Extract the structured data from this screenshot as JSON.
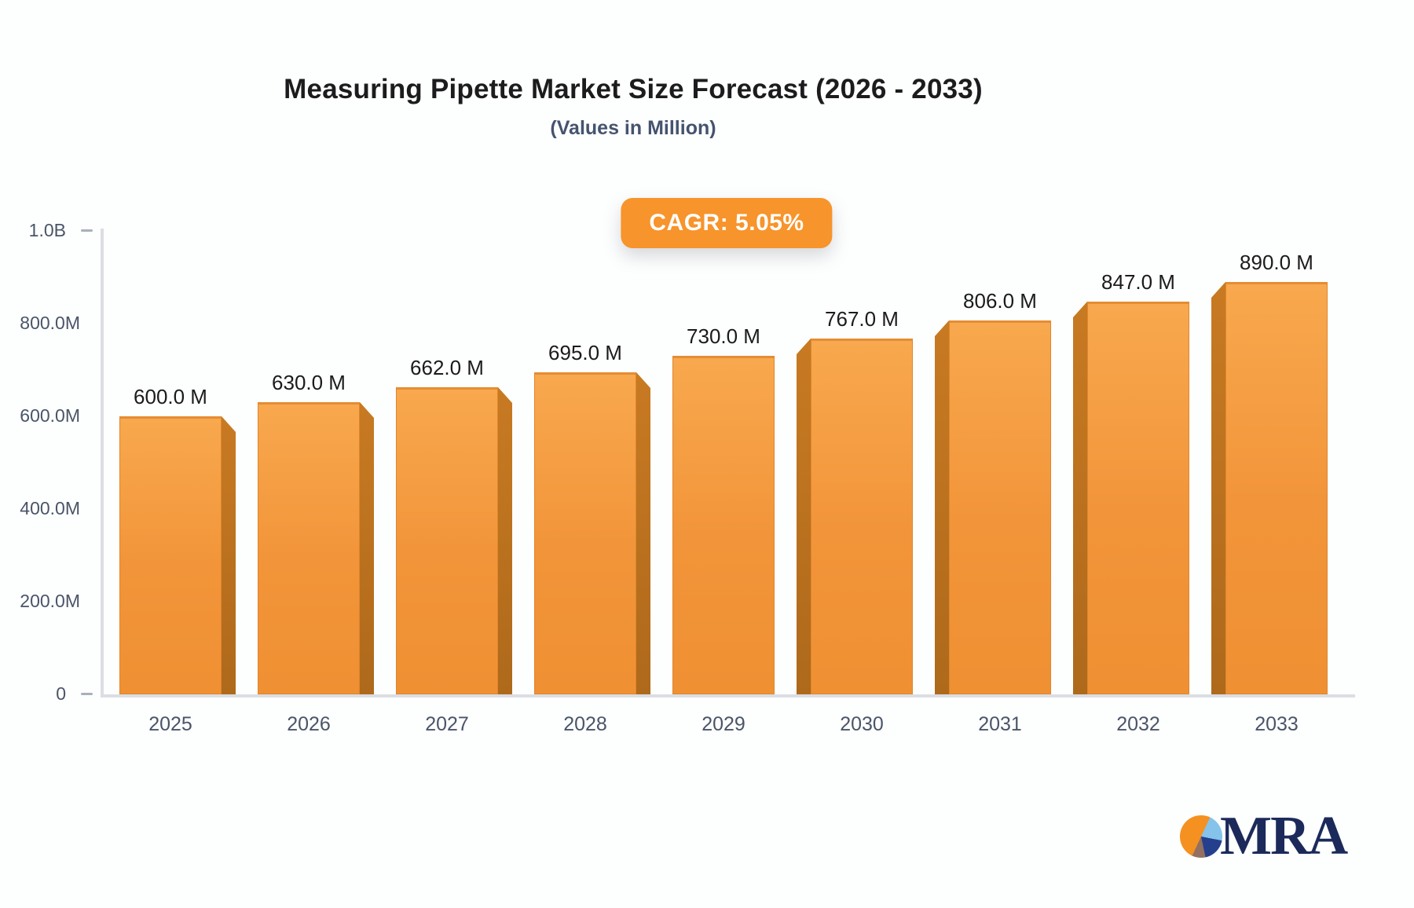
{
  "header": {
    "title": "Measuring Pipette Market Size Forecast (2026 - 2033)",
    "subtitle": "(Values in Million)",
    "cagr_badge": "CAGR: 5.05%"
  },
  "logo": {
    "text": "MRA",
    "pie_icon_colors": [
      "#F59120",
      "#85C3EA",
      "#24408C",
      "#937060"
    ]
  },
  "colors": {
    "bar_main": "#F29439",
    "bar_main_light": "#F8A84E",
    "bar_side": "#B7701E",
    "bar_border": "#E0862C",
    "badge_background": "#F7942B",
    "badge_text": "#FFFFFF",
    "axis_line": "#DBDEE3",
    "axis_text": "#4A5568",
    "value_label_text": "#1B1B1B",
    "title_text": "#1C1C1E",
    "subtitle_text": "#45536E",
    "logo_navy": "#1B2A5A"
  },
  "chart_data": {
    "type": "bar",
    "title": "Measuring Pipette Market Size Forecast (2026 - 2033)",
    "subtitle": "(Values in Million)",
    "annotation": "CAGR: 5.05%",
    "categories": [
      "2025",
      "2026",
      "2027",
      "2028",
      "2029",
      "2030",
      "2031",
      "2032",
      "2033"
    ],
    "values": [
      600,
      630,
      662,
      695,
      730,
      767,
      806,
      847,
      890
    ],
    "value_labels": [
      "600.0 M",
      "630.0 M",
      "662.0 M",
      "695.0 M",
      "730.0 M",
      "767.0 M",
      "806.0 M",
      "847.0 M",
      "890.0 M"
    ],
    "unit_suffix": "M",
    "xlabel": "",
    "ylabel": "",
    "ylim": [
      0,
      1000
    ],
    "y_ticks": [
      {
        "label": "1.0B",
        "value": 1000,
        "ticked": true
      },
      {
        "label": "800.0M",
        "value": 800,
        "ticked": false
      },
      {
        "label": "600.0M",
        "value": 600,
        "ticked": false
      },
      {
        "label": "400.0M",
        "value": 400,
        "ticked": false
      },
      {
        "label": "200.0M",
        "value": 200,
        "ticked": false
      },
      {
        "label": "0",
        "value": 0,
        "ticked": true
      }
    ],
    "grid": false,
    "legend_position": "none",
    "bar_style": "3d-beveled, side face toward chart center, center bar flat"
  }
}
